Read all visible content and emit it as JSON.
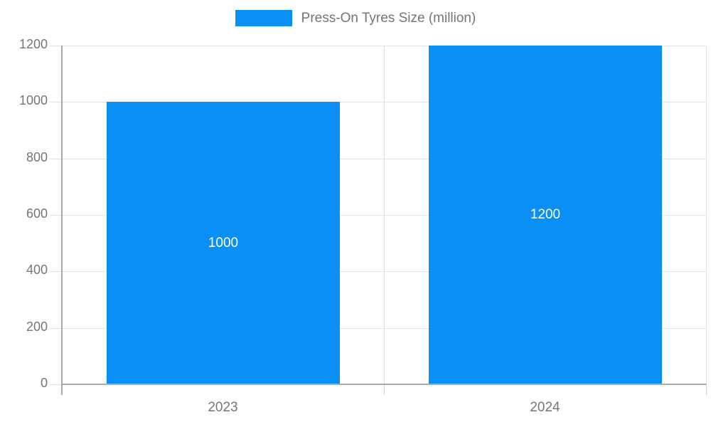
{
  "legend": {
    "label": "Press-On Tyres Size (million)"
  },
  "colors": {
    "bar": "#0a90f4",
    "bar_label": "#ffffff",
    "grid": "#e3e3e3",
    "axis": "#a8a8a8",
    "tick_text": "#757575"
  },
  "chart_data": {
    "type": "bar",
    "categories": [
      "2023",
      "2024"
    ],
    "series": [
      {
        "name": "Press-On Tyres Size (million)",
        "values": [
          1000,
          1200
        ]
      }
    ],
    "title": "",
    "xlabel": "",
    "ylabel": "",
    "ylim": [
      0,
      1200
    ],
    "yticks": [
      0,
      200,
      400,
      600,
      800,
      1000,
      1200
    ],
    "grid": true,
    "legend_position": "top",
    "data_labels": "inside-center"
  }
}
